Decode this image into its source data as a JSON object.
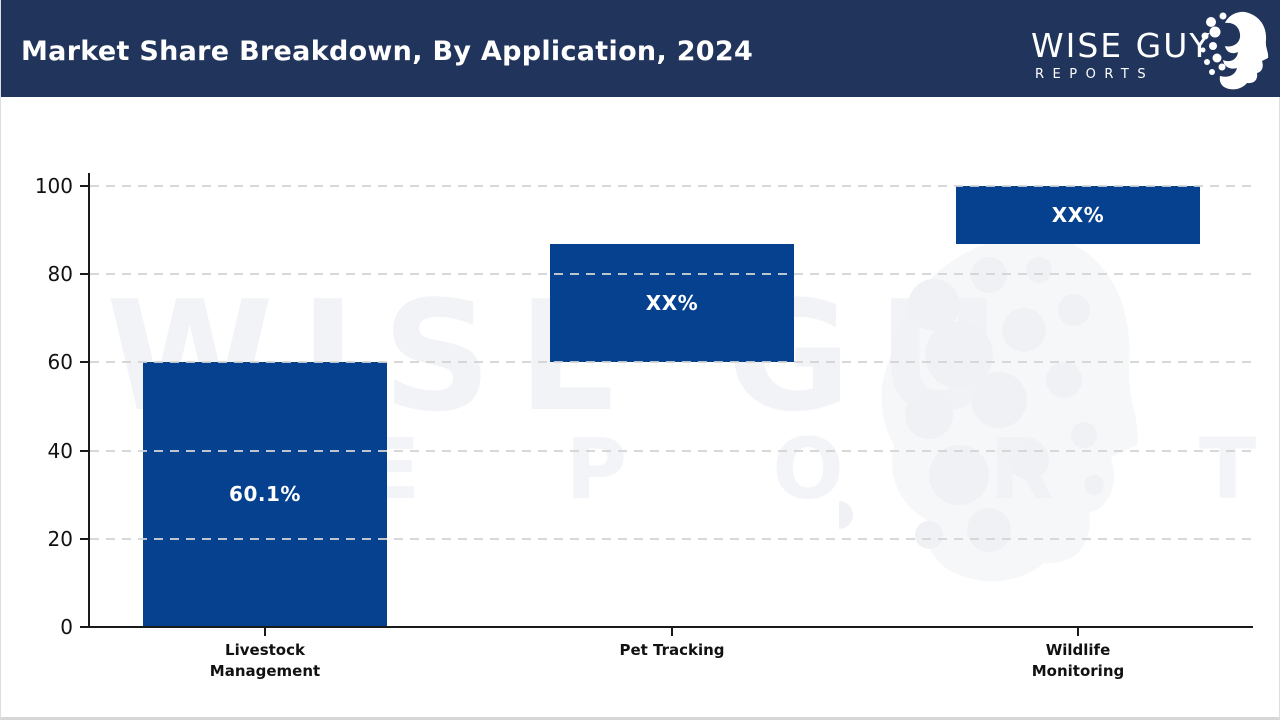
{
  "header": {
    "title": "Market Share Breakdown, By Application, 2024",
    "logo": {
      "line1": "WISE GUY",
      "line2": "REPORTS"
    }
  },
  "watermark": {
    "line1": "WISE GU",
    "line2": "R E P O R T"
  },
  "colors": {
    "header_bg": "#21345B",
    "bar": "#05418F",
    "axis": "#1A1A1A",
    "gridline": "#D4D4D4",
    "watermark": "#F2F3F6",
    "value_label": "#FFFFFF"
  },
  "chart_data": {
    "type": "bar",
    "subtype": "waterfall-floating-bars",
    "title": "Market Share Breakdown, By Application, 2024",
    "categories": [
      "Livestock Management",
      "Pet Tracking",
      "Wildlife Monitoring"
    ],
    "category_label_lines": [
      [
        "Livestock",
        "Management"
      ],
      [
        "Pet Tracking"
      ],
      [
        "Wildlife",
        "Monitoring"
      ]
    ],
    "bars": [
      {
        "label": "60.1%",
        "start": 0,
        "end": 60.1
      },
      {
        "label": "XX%",
        "start": 60.1,
        "end": 86.9
      },
      {
        "label": "XX%",
        "start": 86.9,
        "end": 100
      }
    ],
    "yticks": [
      0,
      20,
      40,
      60,
      80,
      100
    ],
    "ylim": [
      0,
      105
    ],
    "xlabel": "",
    "ylabel": "",
    "grid": "horizontal-dashed",
    "legend": null,
    "bar_color": "#05418F",
    "value_label_color": "#FFFFFF"
  }
}
